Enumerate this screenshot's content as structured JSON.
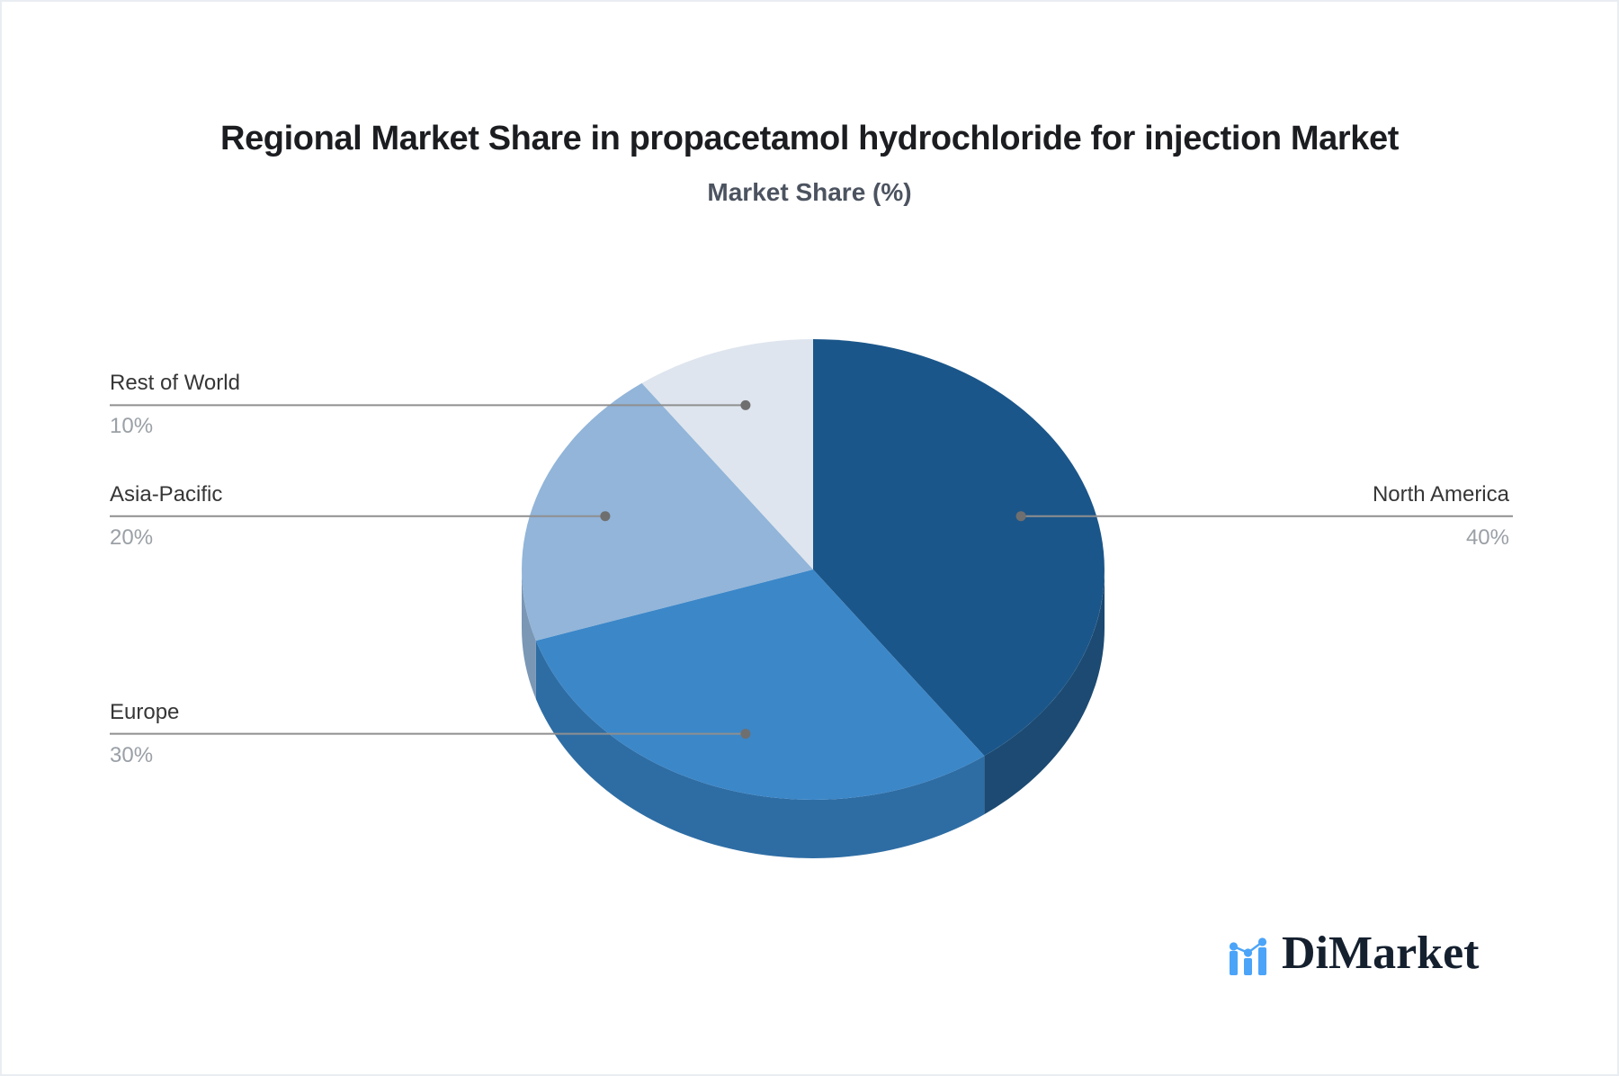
{
  "page": {
    "background": "#ffffff",
    "border_color": "#e9edf2"
  },
  "header": {
    "title": "Regional Market Share in propacetamol hydrochloride for injection Market",
    "subtitle": "Market Share (%)"
  },
  "chart_data": {
    "type": "pie",
    "style": "3d",
    "title": "Regional Market Share in propacetamol hydrochloride for injection Market",
    "subtitle": "Market Share (%)",
    "value_suffix": "%",
    "rotation": "clockwise-from-12-oclock",
    "slices": [
      {
        "label": "North America",
        "value": 40,
        "display_value": "40%",
        "color": "#1B568A",
        "side_color": "#1C4A72"
      },
      {
        "label": "Europe",
        "value": 30,
        "display_value": "30%",
        "color": "#3C87C8",
        "side_color": "#2E6DA4"
      },
      {
        "label": "Asia-Pacific",
        "value": 20,
        "display_value": "20%",
        "color": "#92B5D9",
        "side_color": "#7A97B5"
      },
      {
        "label": "Rest of World",
        "value": 10,
        "display_value": "10%",
        "color": "#DEE5EE",
        "side_color": "#B9C4D3"
      }
    ],
    "callout_style": {
      "line_color": "#8f8f8f",
      "dot_color": "#6f6f6f",
      "label_color": "#363636",
      "value_color": "#9aa0a6"
    },
    "legend": "none"
  },
  "logo": {
    "text": "DiMarket",
    "icon": "bar-line-chart-icon",
    "icon_color": "#4BA4F8",
    "text_color": "#15202F"
  }
}
